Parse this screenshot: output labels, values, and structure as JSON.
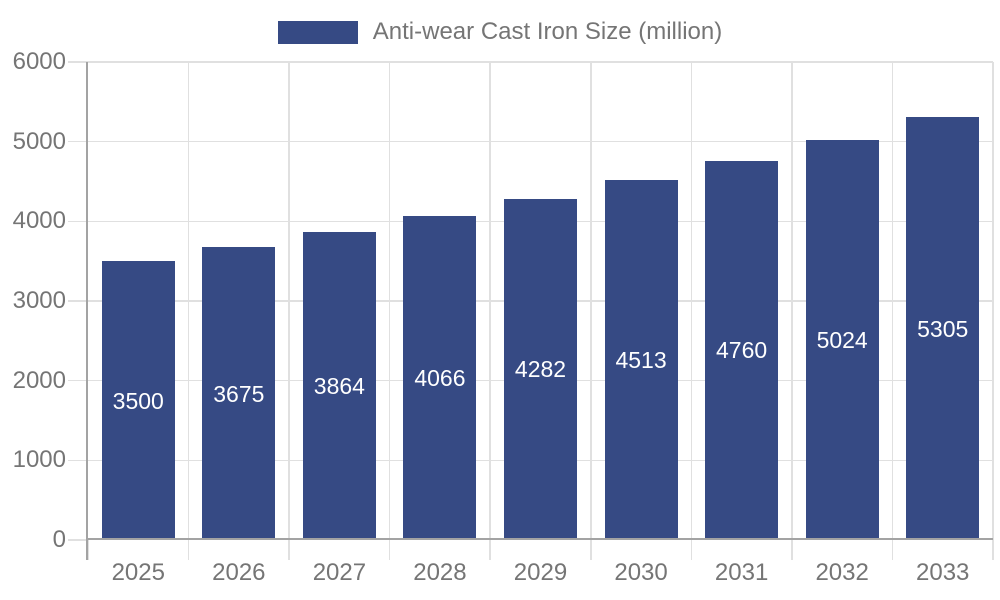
{
  "legend": {
    "position": "top",
    "swatch_icon": "legend-swatch"
  },
  "colors": {
    "background": "#ffffff",
    "bar": "#364a84",
    "axis_line": "#a3a3a3",
    "grid_line": "#e0e0e0",
    "label_text": "#757575",
    "value_text": "#ffffff"
  },
  "chart_data": {
    "type": "bar",
    "title": "",
    "categories": [
      "2025",
      "2026",
      "2027",
      "2028",
      "2029",
      "2030",
      "2031",
      "2032",
      "2033"
    ],
    "series": [
      {
        "name": "Anti-wear Cast Iron Size (million)",
        "values": [
          3500,
          3675,
          3864,
          4066,
          4282,
          4513,
          4760,
          5024,
          5305
        ]
      }
    ],
    "xlabel": "",
    "ylabel": "",
    "ylim": [
      0,
      6000
    ],
    "yticks": [
      0,
      1000,
      2000,
      3000,
      4000,
      5000,
      6000
    ],
    "grid": true,
    "legend_position": "top",
    "value_labels": "inside-center"
  }
}
